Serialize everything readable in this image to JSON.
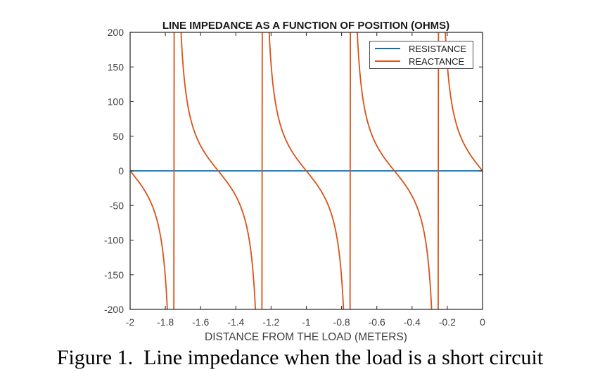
{
  "figure": {
    "caption": "Figure 1.  Line impedance when the load is a short circuit"
  },
  "chart_data": {
    "type": "line",
    "title": "LINE IMPEDANCE AS A FUNCTION OF POSITION (OHMS)",
    "xlabel": "DISTANCE FROM THE LOAD (METERS)",
    "ylabel": "",
    "xlim": [
      -2,
      0
    ],
    "ylim": [
      -200,
      200
    ],
    "x_ticks": [
      -2,
      -1.8,
      -1.6,
      -1.4,
      -1.2,
      -1,
      -0.8,
      -0.6,
      -0.4,
      -0.2,
      0
    ],
    "y_ticks": [
      -200,
      -150,
      -100,
      -50,
      0,
      50,
      100,
      150,
      200
    ],
    "grid": false,
    "plot_background": "#ffffff",
    "axis_color": "#333333",
    "tick_label_color": "#3f3f3f",
    "legend": {
      "position": "top-right-inside",
      "border_color": "#4d4d4d",
      "entries": [
        "RESISTANCE",
        "REACTANCE"
      ]
    },
    "series": [
      {
        "name": "RESISTANCE",
        "color": "#0072BD",
        "curve": "constant",
        "value": 0,
        "points": [
          [
            -2,
            0
          ],
          [
            0,
            0
          ]
        ]
      },
      {
        "name": "REACTANCE",
        "color": "#D95319",
        "curve": "tangent",
        "formula": "X(x) = 50 * tan(2*pi*|x|)",
        "z0_ohms": 50,
        "wavelength_m": 1,
        "zeros_x": [
          -2,
          -1.5,
          -1,
          -0.5,
          0
        ],
        "asymptotes_x": [
          -1.75,
          -1.25,
          -0.75,
          -0.25
        ],
        "clipped_at": [
          -200,
          200
        ]
      }
    ]
  }
}
